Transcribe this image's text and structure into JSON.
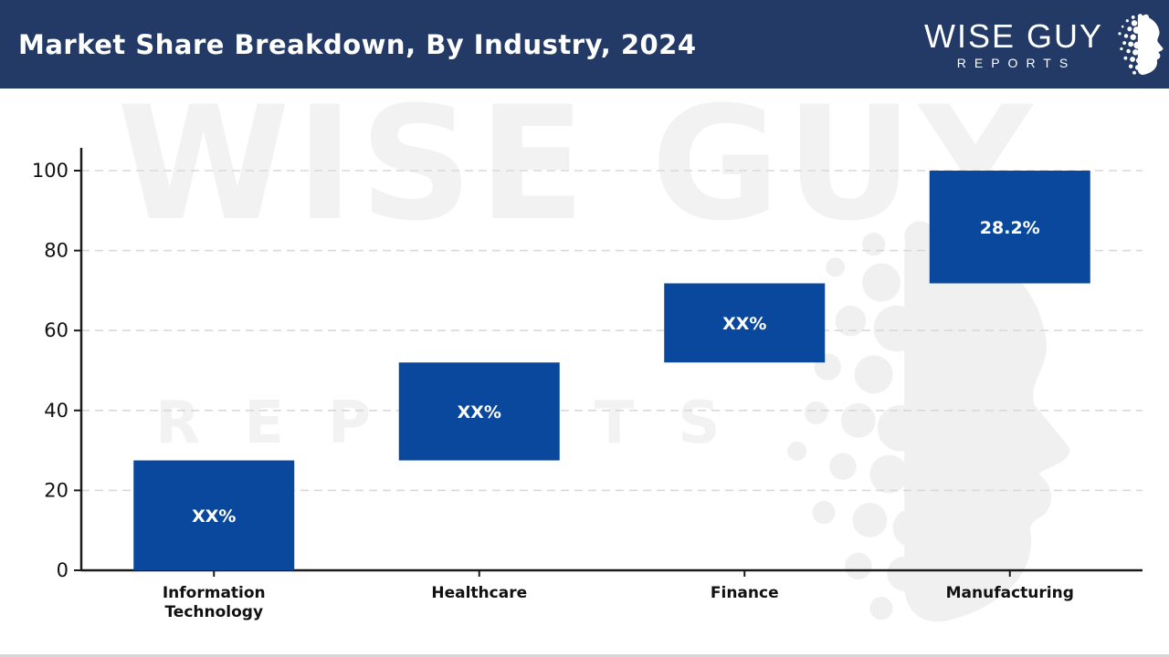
{
  "header": {
    "title": "Market Share Breakdown, By Industry, 2024",
    "logo": {
      "line1": "WISE GUY",
      "line2": "REPORTS",
      "head_icon": "dotted-head-profile"
    }
  },
  "watermark": {
    "line1": "WISE GUY",
    "line2": "REPORTS"
  },
  "colors": {
    "header_bg": "#233a66",
    "bar": "#0a489e",
    "bar_label": "#ffffff",
    "axis": "#1a1a1a",
    "grid": "#d9d9d9",
    "watermark": "#f2f2f2",
    "watermark_head": "#f0f0f0"
  },
  "chart_data": {
    "type": "bar",
    "subtype": "waterfall",
    "title": "Market Share Breakdown, By Industry, 2024",
    "categories": [
      "Information Technology",
      "Healthcare",
      "Finance",
      "Manufacturing"
    ],
    "categories_wrapped": [
      [
        "Information",
        "Technology"
      ],
      [
        "Healthcare"
      ],
      [
        "Finance"
      ],
      [
        "Manufacturing"
      ]
    ],
    "values": [
      27.5,
      24.5,
      19.8,
      28.2
    ],
    "cumulative_start": [
      0,
      27.5,
      52.0,
      71.8
    ],
    "bar_labels": [
      "XX%",
      "XX%",
      "XX%",
      "28.2%"
    ],
    "xlabel": "",
    "ylabel": "",
    "ylim": [
      0,
      100
    ],
    "yticks": [
      0,
      20,
      40,
      60,
      80,
      100
    ],
    "grid": "horizontal-dashed",
    "legend": "none"
  }
}
